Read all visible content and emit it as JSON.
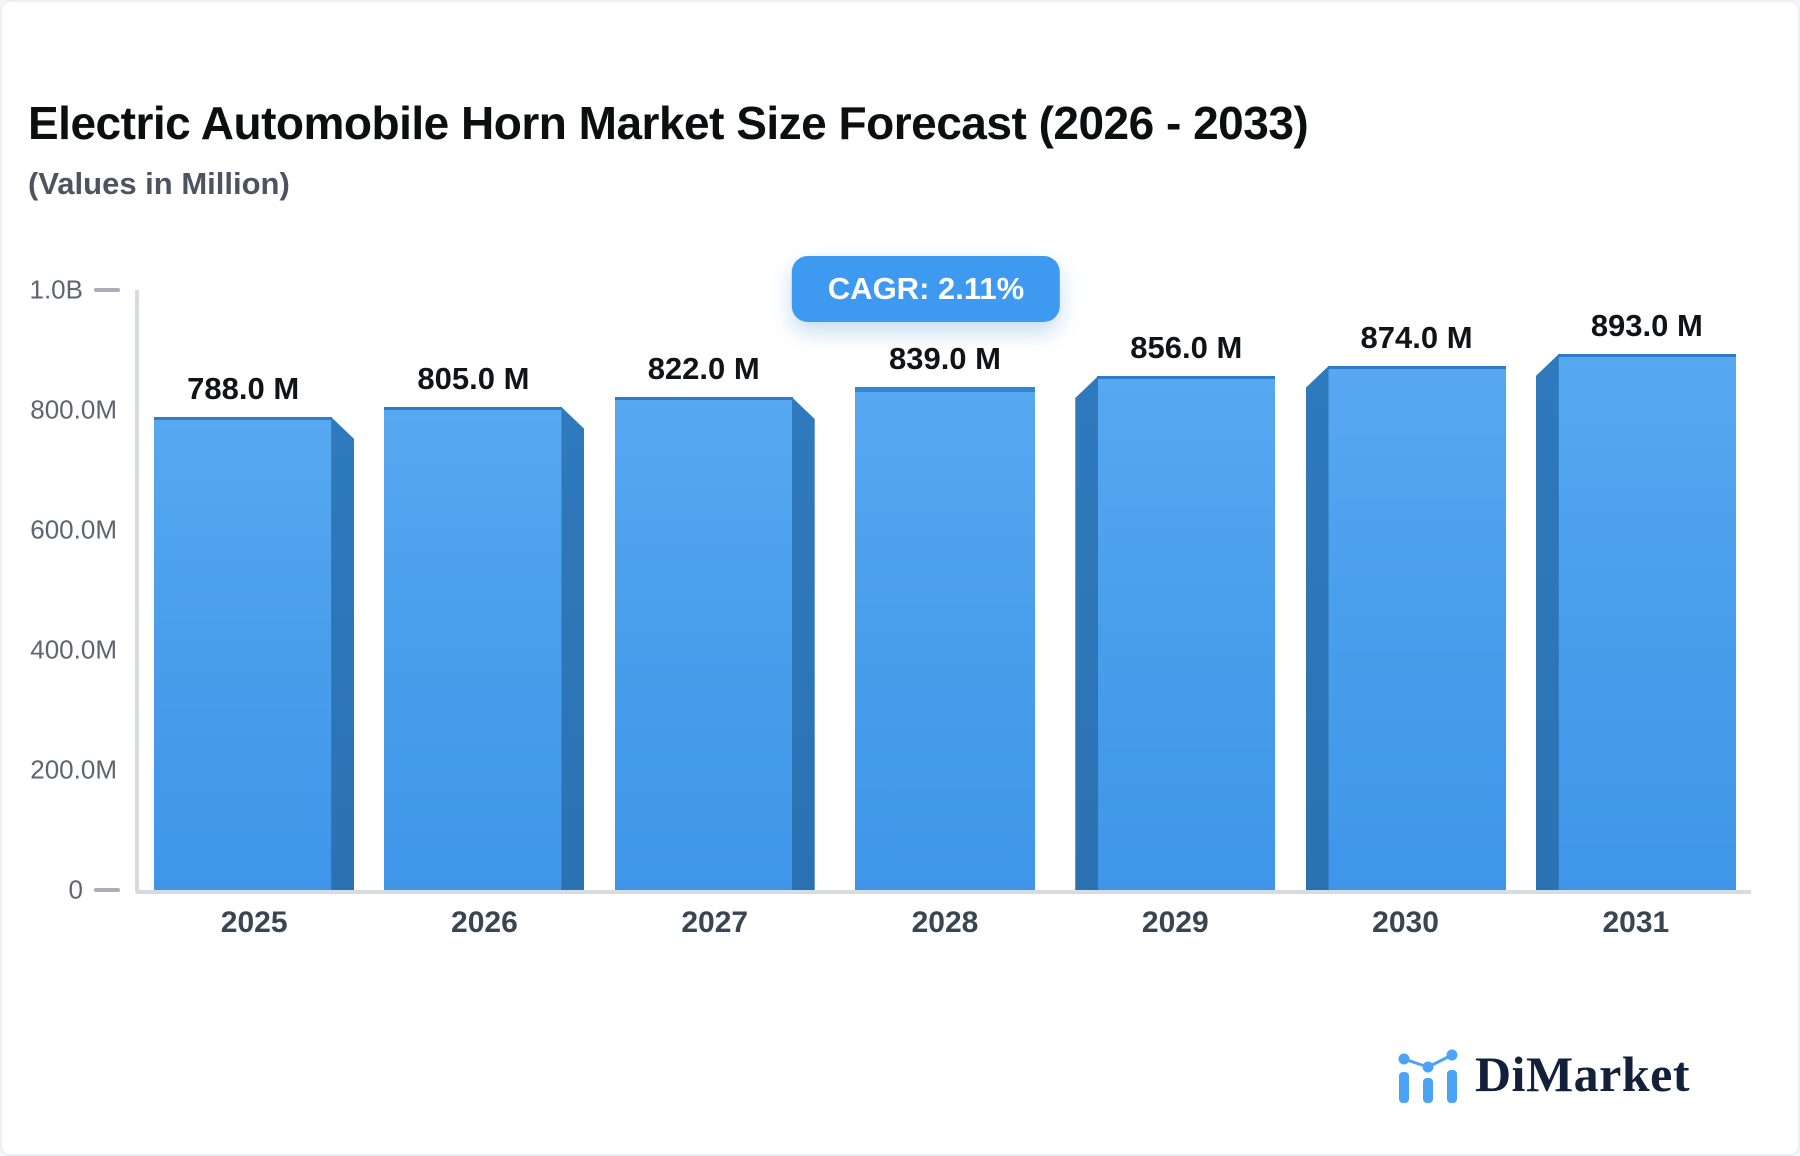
{
  "header": {
    "title": "Electric Automobile Horn Market Size Forecast (2026 - 2033)",
    "subtitle": "(Values in Million)"
  },
  "badge": {
    "label": "CAGR: 2.11%"
  },
  "chart_data": {
    "type": "bar",
    "title": "Electric Automobile Horn Market Size Forecast (2026 - 2033)",
    "subtitle": "(Values in Million)",
    "cagr_label": "CAGR: 2.11%",
    "categories": [
      "2025",
      "2026",
      "2027",
      "2028",
      "2029",
      "2030",
      "2031"
    ],
    "values_millions": [
      788,
      805,
      822,
      839,
      856,
      874,
      893
    ],
    "value_labels": [
      "788.0 M",
      "805.0 M",
      "822.0 M",
      "839.0 M",
      "856.0 M",
      "874.0 M",
      "893.0 M"
    ],
    "ylim_millions": [
      0,
      1000
    ],
    "y_ticks": [
      {
        "label": "1.0B",
        "value_millions": 1000,
        "dash": true
      },
      {
        "label": "800.0M",
        "value_millions": 800,
        "dash": false
      },
      {
        "label": "600.0M",
        "value_millions": 600,
        "dash": false
      },
      {
        "label": "400.0M",
        "value_millions": 400,
        "dash": false
      },
      {
        "label": "200.0M",
        "value_millions": 200,
        "dash": false
      },
      {
        "label": "0",
        "value_millions": 0,
        "dash": true
      }
    ],
    "grid": false,
    "legend": false,
    "bar_style": "3d-beveled"
  },
  "logo": {
    "text": "DiMarket",
    "icon": "mini-bar-chart-icon"
  },
  "colors": {
    "bar_face": "#4a9fec",
    "bar_side": "#2d76b8",
    "badge_bg": "#3d9af0",
    "badge_text": "#ffffff",
    "axis_line": "#d7dade",
    "tick_text": "#5d6570",
    "xlabel_text": "#3a4553",
    "value_text": "#111318",
    "title_text": "#0d0e10",
    "subtitle_text": "#4d545f",
    "logo_navy": "#12203a",
    "logo_blue": "#4aa3f7"
  }
}
